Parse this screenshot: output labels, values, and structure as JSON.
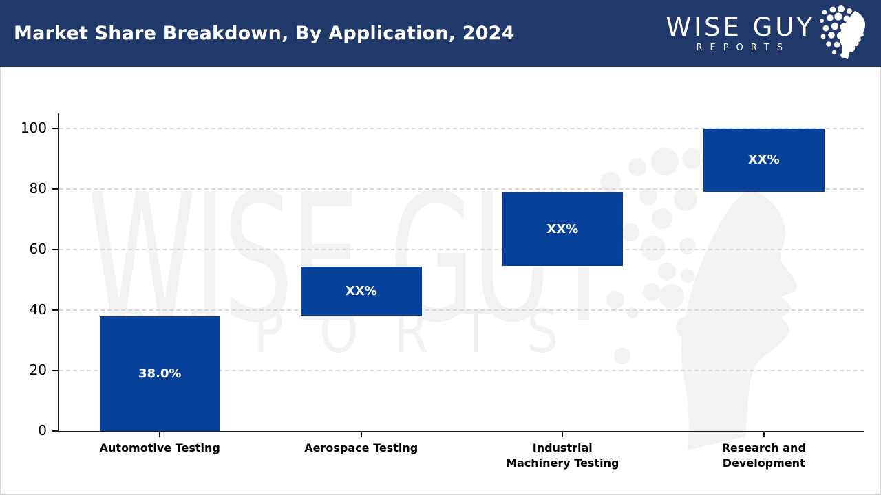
{
  "header": {
    "title": "Market Share Breakdown, By Application, 2024",
    "logo": {
      "line1": "WISE GUY",
      "line2": "REPORTS"
    }
  },
  "watermark": {
    "line1": "WISE GUY",
    "line2": "REPORTS"
  },
  "chart_data": {
    "type": "bar",
    "subtype": "waterfall",
    "title": "Market Share Breakdown, By Application, 2024",
    "categories": [
      "Automotive Testing",
      "Aerospace Testing",
      "Industrial\nMachinery Testing",
      "Research and\nDevelopment"
    ],
    "bars": [
      {
        "category": "Automotive Testing",
        "start": 0,
        "end": 38,
        "label": "38.0%"
      },
      {
        "category": "Aerospace Testing",
        "start": 38.2,
        "end": 54.4,
        "label": "XX%"
      },
      {
        "category": "Industrial\nMachinery Testing",
        "start": 54.6,
        "end": 78.9,
        "label": "XX%"
      },
      {
        "category": "Research and\nDevelopment",
        "start": 79.2,
        "end": 100,
        "label": "XX%"
      }
    ],
    "yticks": [
      0,
      20,
      40,
      60,
      80,
      100
    ],
    "ylim": [
      0,
      105
    ],
    "xlabel": "",
    "ylabel": "",
    "grid": "dashed-horizontal",
    "legend": "none",
    "bar_color": "#08419b",
    "bar_label_color": "#ffffff"
  },
  "colors": {
    "header_bg": "#21386b",
    "bar": "#08419b",
    "grid": "#d8d8d8",
    "axis": "#1a1a1a",
    "watermark": "#f1f2f4"
  }
}
